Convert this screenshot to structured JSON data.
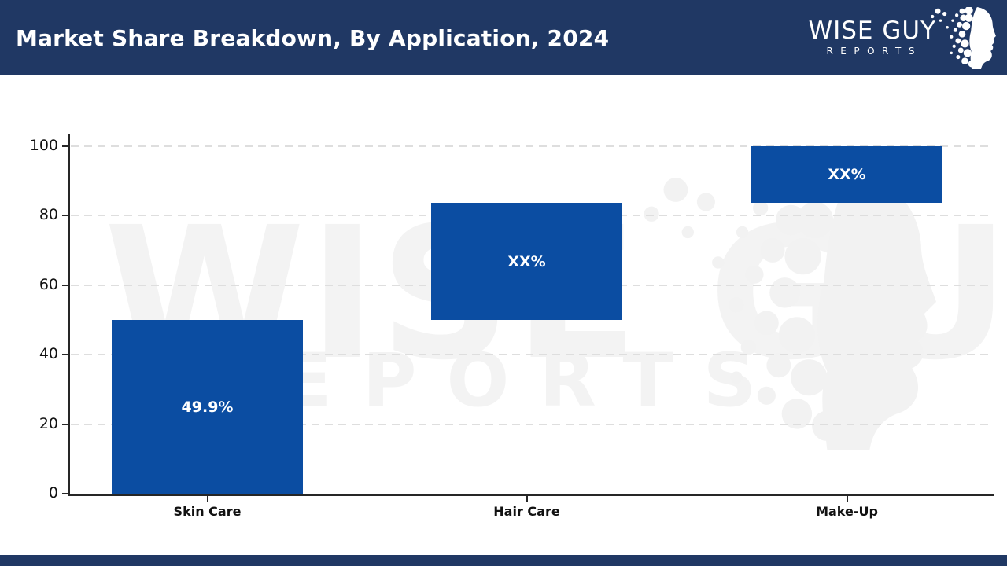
{
  "header": {
    "title": "Market Share Breakdown, By Application, 2024",
    "logo": {
      "line1": "WISE GUY",
      "line2": "REPORTS"
    }
  },
  "watermark": {
    "line1": "WISE GUY",
    "line2": "REPORTS"
  },
  "chart_data": {
    "type": "bar",
    "subtype": "floating-waterfall-percent",
    "title": "Market Share Breakdown, By Application, 2024",
    "categories": [
      "Skin Care",
      "Hair Care",
      "Make-Up"
    ],
    "bars": [
      {
        "category": "Skin Care",
        "start": 0,
        "end": 49.9,
        "label": "49.9%"
      },
      {
        "category": "Hair Care",
        "start": 49.9,
        "end": 83.6,
        "label": "XX%"
      },
      {
        "category": "Make-Up",
        "start": 83.6,
        "end": 100,
        "label": "XX%"
      }
    ],
    "xlabel": "",
    "ylabel": "",
    "ylim": [
      0,
      100
    ],
    "yticks": [
      0,
      20,
      40,
      60,
      80,
      100
    ],
    "grid": "horizontal-dashed",
    "legend": "none",
    "bar_color": "#0b4da2",
    "bar_label_color": "#ffffff"
  },
  "colors": {
    "header_bg": "#203864",
    "footer_bg": "#203864",
    "bar": "#0b4da2",
    "axis": "#262626",
    "grid": "#dedede",
    "watermark": "#f2f2f2",
    "title_text": "#ffffff"
  }
}
